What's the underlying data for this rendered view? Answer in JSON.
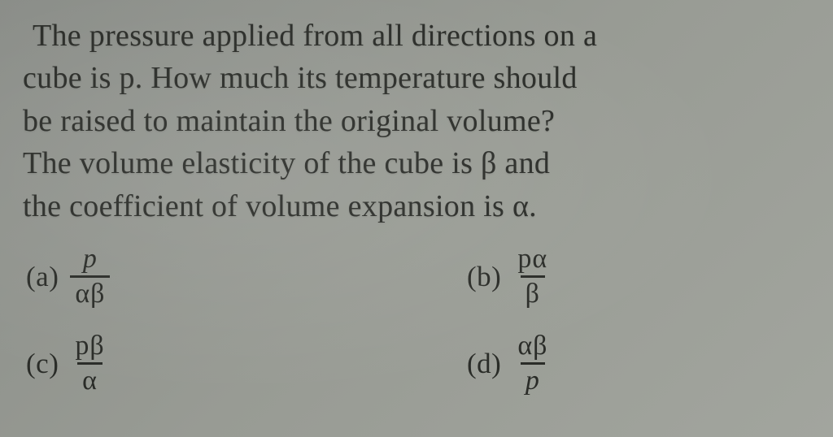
{
  "question": {
    "line1": "The pressure applied from all directions on a",
    "line2": "cube is p. How much its temperature should",
    "line3": "be raised to maintain the original volume?",
    "line4": "The volume elasticity of the cube is β and",
    "line5": "the coefficient of volume expansion is α.",
    "font_size": 38,
    "text_color": "#2a2c28",
    "background_color": "#989b94"
  },
  "options": {
    "a": {
      "label": "(a)",
      "numerator": "p",
      "denominator": "αβ"
    },
    "b": {
      "label": "(b)",
      "numerator": "pα",
      "denominator": "β"
    },
    "c": {
      "label": "(c)",
      "numerator": "pβ",
      "denominator": "α"
    },
    "d": {
      "label": "(d)",
      "numerator": "αβ",
      "denominator": "p"
    }
  },
  "styling": {
    "fraction_bar_color": "#2a2c28",
    "fraction_bar_width": 3,
    "option_fontsize": 36,
    "fraction_fontsize": 34
  }
}
